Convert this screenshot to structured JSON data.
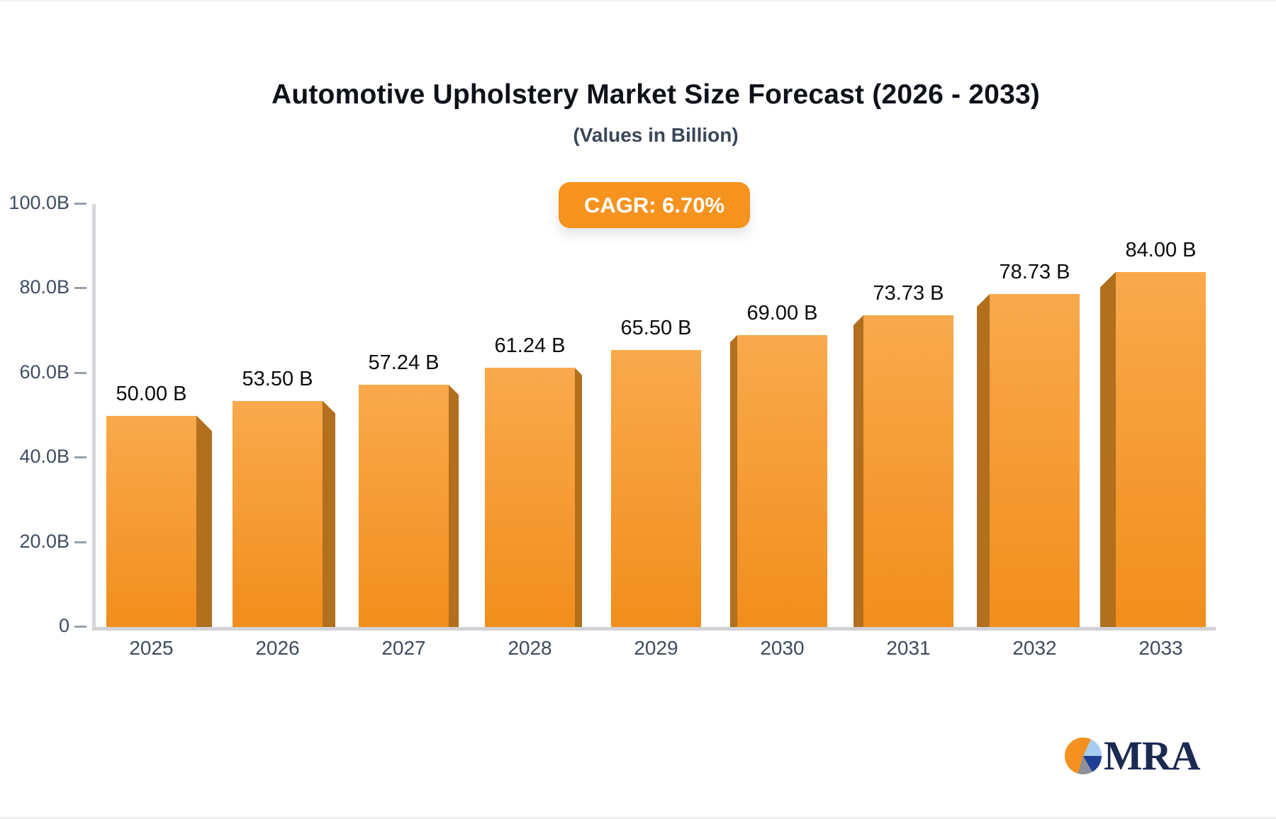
{
  "title": "Automotive Upholstery Market Size Forecast (2026 - 2033)",
  "subtitle": "(Values in Billion)",
  "cagr_badge": "CAGR: 6.70%",
  "chart_data": {
    "type": "bar",
    "title": "Automotive Upholstery Market Size Forecast (2026 - 2033)",
    "subtitle": "(Values in Billion)",
    "cagr_percent": "6.70%",
    "categories": [
      "2025",
      "2026",
      "2027",
      "2028",
      "2029",
      "2030",
      "2031",
      "2032",
      "2033"
    ],
    "values": [
      50.0,
      53.5,
      57.24,
      61.24,
      65.5,
      69.0,
      73.73,
      78.73,
      84.0
    ],
    "value_labels": [
      "50.00 B",
      "53.50 B",
      "57.24 B",
      "61.24 B",
      "65.50 B",
      "69.00 B",
      "73.73 B",
      "78.73 B",
      "84.00 B"
    ],
    "unit_suffix": "B",
    "y_tick_values": [
      0,
      20,
      40,
      60,
      80,
      100
    ],
    "y_tick_labels": [
      "0",
      "20.0B",
      "40.0B",
      "60.0B",
      "80.0B",
      "100.0B"
    ],
    "ylim": [
      0,
      100
    ],
    "grid": false,
    "legend": false,
    "bar_style": "3d",
    "bar_color": "#f6921e",
    "bar_gradient_top": "#f9a94c",
    "bar_gradient_bottom": "#f18e1c",
    "bar_side_color": "#b26f1d"
  },
  "badge_colors": {
    "background": "#f6921e",
    "text": "#ffffff"
  },
  "logo": {
    "text": "MRA",
    "icon": "pie-chart-logo-icon",
    "navy": "#1b2a52",
    "pie_orange": "#f59120",
    "pie_light_blue": "#a6cdf2",
    "pie_dark_blue": "#1e3f94",
    "pie_gray": "#8d9099"
  }
}
